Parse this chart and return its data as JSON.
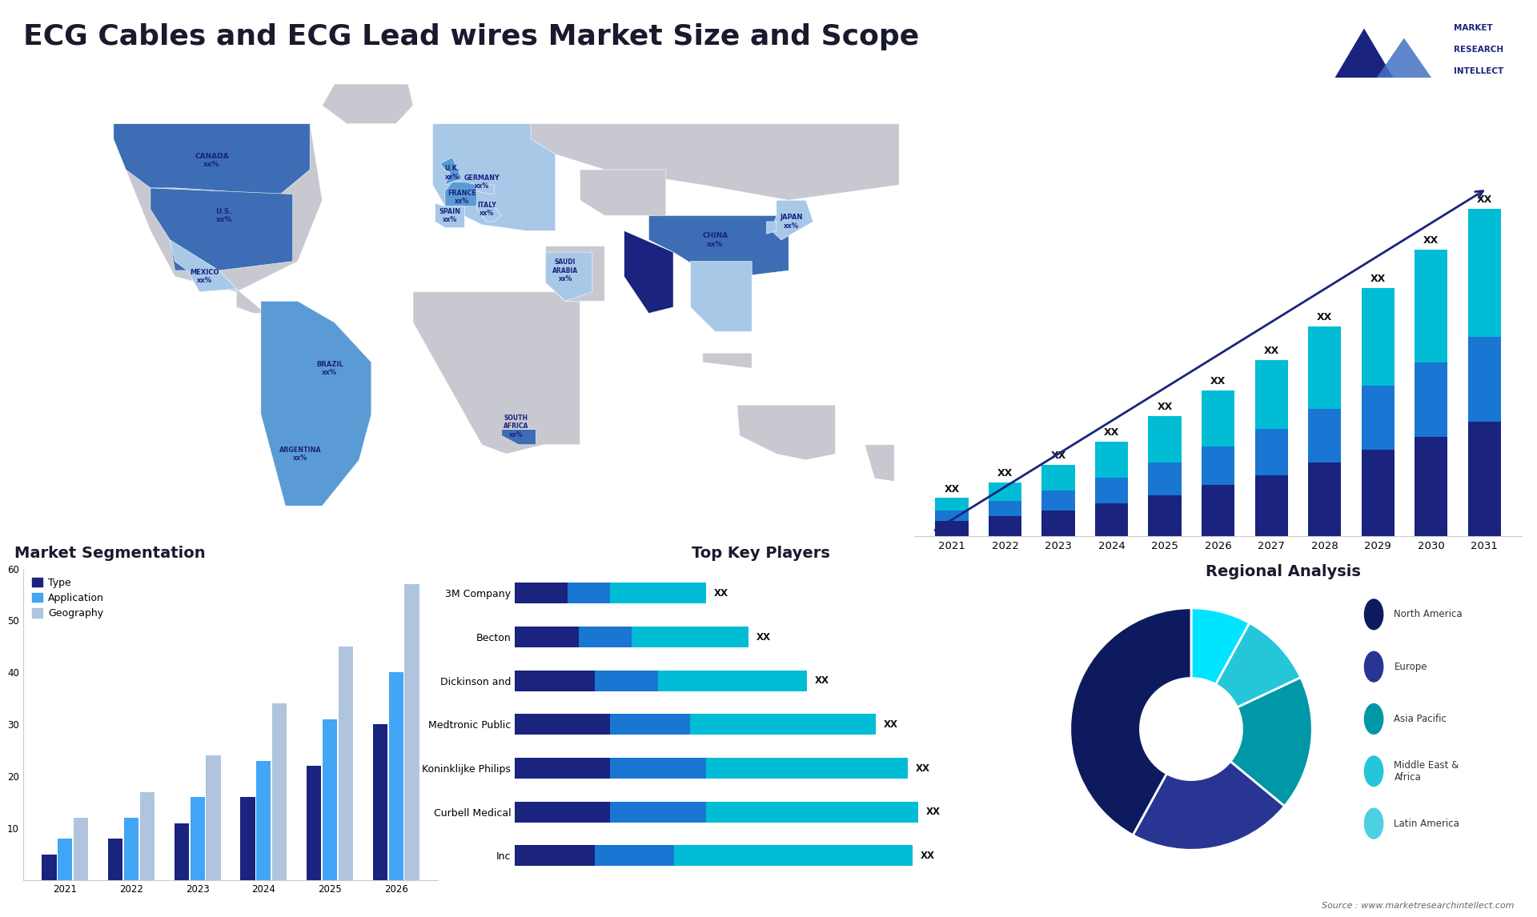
{
  "title": "ECG Cables and ECG Lead wires Market Size and Scope",
  "title_fontsize": 26,
  "title_color": "#1a1a2e",
  "background_color": "#ffffff",
  "bar_chart": {
    "years": [
      "2021",
      "2022",
      "2023",
      "2024",
      "2025",
      "2026",
      "2027",
      "2028",
      "2029",
      "2030",
      "2031"
    ],
    "seg1": [
      0.6,
      0.8,
      1.0,
      1.3,
      1.6,
      2.0,
      2.4,
      2.9,
      3.4,
      3.9,
      4.5
    ],
    "seg2": [
      0.4,
      0.6,
      0.8,
      1.0,
      1.3,
      1.5,
      1.8,
      2.1,
      2.5,
      2.9,
      3.3
    ],
    "seg3": [
      0.5,
      0.7,
      1.0,
      1.4,
      1.8,
      2.2,
      2.7,
      3.2,
      3.8,
      4.4,
      5.0
    ],
    "colors": [
      "#1a237e",
      "#1976d2",
      "#00bcd4"
    ],
    "label_text": "XX",
    "arrow_color": "#1a237e"
  },
  "segmentation_chart": {
    "years": [
      "2021",
      "2022",
      "2023",
      "2024",
      "2025",
      "2026"
    ],
    "type_vals": [
      5,
      8,
      11,
      16,
      22,
      30
    ],
    "app_vals": [
      8,
      12,
      16,
      23,
      31,
      40
    ],
    "geo_vals": [
      12,
      17,
      24,
      34,
      45,
      57
    ],
    "colors": [
      "#1a237e",
      "#42a5f5",
      "#b0c4de"
    ],
    "title": "Market Segmentation",
    "title_color": "#1a1a2e",
    "legend_labels": [
      "Type",
      "Application",
      "Geography"
    ],
    "legend_colors": [
      "#1a237e",
      "#42a5f5",
      "#b0c4de"
    ],
    "ylim": [
      0,
      60
    ]
  },
  "top_players": {
    "title": "Top Key Players",
    "title_color": "#1a1a2e",
    "companies": [
      "Inc",
      "Curbell Medical",
      "Koninklijke Philips",
      "Medtronic Public",
      "Dickinson and",
      "Becton",
      "3M Company"
    ],
    "seg1": [
      1.5,
      1.8,
      1.8,
      1.8,
      1.5,
      1.2,
      1.0
    ],
    "seg2": [
      1.5,
      1.8,
      1.8,
      1.5,
      1.2,
      1.0,
      0.8
    ],
    "seg3": [
      4.5,
      4.0,
      3.8,
      3.5,
      2.8,
      2.2,
      1.8
    ],
    "colors": [
      "#1a237e",
      "#1976d2",
      "#00bcd4"
    ],
    "label_text": "XX"
  },
  "regional_analysis": {
    "title": "Regional Analysis",
    "title_color": "#1a1a2e",
    "labels": [
      "Latin America",
      "Middle East &\nAfrica",
      "Asia Pacific",
      "Europe",
      "North America"
    ],
    "sizes": [
      8,
      10,
      18,
      22,
      42
    ],
    "wedge_colors": [
      "#00e5ff",
      "#26c6da",
      "#0097a7",
      "#283593",
      "#0d1b5e"
    ],
    "legend_dot_colors": [
      "#4dd0e1",
      "#26c6da",
      "#0097a7",
      "#283593",
      "#0d1b5e"
    ]
  },
  "source_text": "Source : www.marketresearchintellect.com"
}
